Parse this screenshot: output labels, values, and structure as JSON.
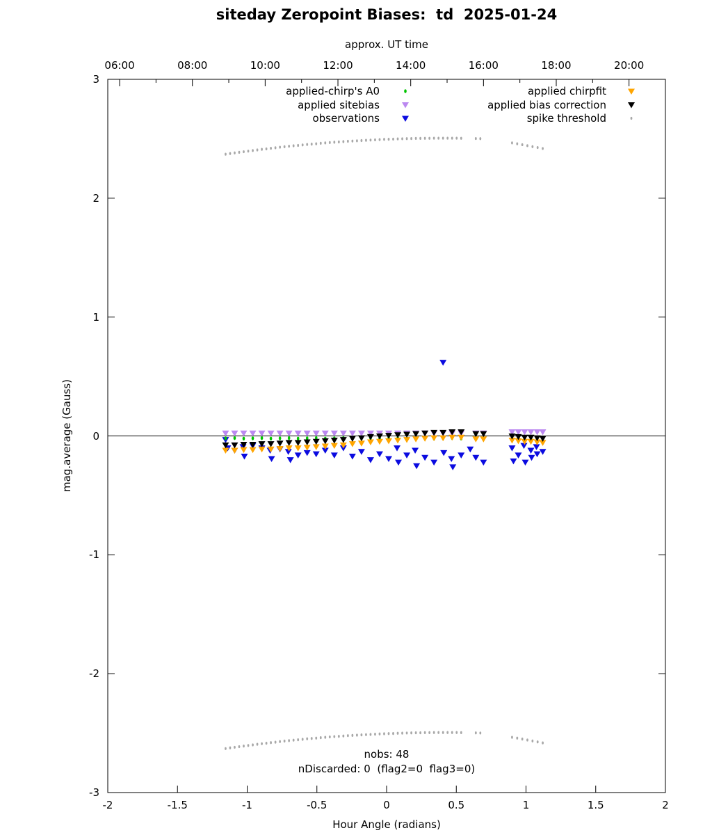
{
  "title": "siteday Zeropoint Biases:  td  2025-01-24",
  "chart_data": {
    "type": "scatter",
    "title": "siteday Zeropoint Biases:  td  2025-01-24",
    "xlabel": "Hour Angle (radians)",
    "ylabel": "mag.average (Gauss)",
    "x2label": "approx. UT time",
    "xlim": [
      -2,
      2
    ],
    "ylim": [
      -3,
      3
    ],
    "grid": false,
    "x_ticks": [
      -2,
      -1.5,
      -1,
      -0.5,
      0,
      0.5,
      1,
      1.5,
      2
    ],
    "x_tick_labels": [
      "-2",
      "-1.5",
      "-1",
      "-0.5",
      "0",
      "0.5",
      "1",
      "1.5",
      "2"
    ],
    "y_ticks": [
      3,
      2,
      1,
      0,
      -1,
      -2,
      -3
    ],
    "y_tick_labels": [
      "3",
      "2",
      "1",
      "0",
      "-1",
      "-2",
      "-3"
    ],
    "x2_ticks": [
      -1.915,
      -1.393,
      -0.871,
      -0.349,
      0.173,
      0.695,
      1.217,
      1.739
    ],
    "x2_tick_labels": [
      "06:00",
      "08:00",
      "10:00",
      "12:00",
      "14:00",
      "16:00",
      "18:00",
      "20:00"
    ],
    "x2_ticks_minor": [
      -1.654,
      -1.132,
      -0.61,
      -0.088,
      0.434,
      0.956,
      1.478
    ],
    "zero_line": 0,
    "annotations": {
      "nobs": "nobs: 48",
      "ndiscarded": "nDiscarded: 0  (flag2=0  flag3=0)"
    },
    "series": [
      {
        "name": "observations",
        "marker": "triangle-down",
        "color": "#0b0be0",
        "x": [
          -1.155,
          -1.14,
          -1.09,
          -1.03,
          -1.02,
          -0.96,
          -0.895,
          -0.835,
          -0.825,
          -0.765,
          -0.705,
          -0.69,
          -0.635,
          -0.57,
          -0.505,
          -0.44,
          -0.375,
          -0.31,
          -0.245,
          -0.18,
          -0.115,
          -0.05,
          0.015,
          0.075,
          0.085,
          0.145,
          0.205,
          0.215,
          0.275,
          0.34,
          0.405,
          0.41,
          0.465,
          0.475,
          0.535,
          0.6,
          0.64,
          0.695,
          0.9,
          0.91,
          0.945,
          0.985,
          0.995,
          1.035,
          1.04,
          1.075,
          1.08,
          1.12
        ],
        "y": [
          -0.03,
          -0.1,
          -0.12,
          -0.09,
          -0.17,
          -0.08,
          -0.1,
          -0.12,
          -0.19,
          -0.11,
          -0.13,
          -0.2,
          -0.16,
          -0.14,
          -0.15,
          -0.12,
          -0.16,
          -0.1,
          -0.17,
          -0.13,
          -0.2,
          -0.15,
          -0.19,
          -0.1,
          -0.22,
          -0.16,
          -0.12,
          -0.25,
          -0.18,
          -0.22,
          0.62,
          -0.14,
          -0.19,
          -0.26,
          -0.16,
          -0.11,
          -0.18,
          -0.22,
          -0.1,
          -0.21,
          -0.16,
          -0.08,
          -0.22,
          -0.12,
          -0.18,
          -0.09,
          -0.15,
          -0.13
        ]
      },
      {
        "name": "applied-chirp's A0",
        "marker": "dot",
        "color": "#00c400",
        "x": [
          -1.155,
          -1.09,
          -1.025,
          -0.96,
          -0.895,
          -0.83,
          -0.765,
          -0.7,
          -0.635,
          -0.57,
          -0.505,
          -0.44,
          -0.375,
          -0.31,
          -0.245,
          -0.18,
          -0.115,
          -0.05,
          0.015,
          0.08,
          0.145,
          0.21,
          0.275,
          0.34,
          0.405,
          0.47,
          0.535,
          0.64,
          0.695,
          0.9,
          0.945,
          0.99,
          1.035,
          1.08,
          1.12
        ],
        "y": [
          -0.02,
          -0.018,
          -0.022,
          -0.02,
          -0.018,
          -0.022,
          -0.02,
          -0.018,
          -0.022,
          -0.02,
          -0.018,
          -0.022,
          -0.02,
          -0.018,
          -0.022,
          -0.02,
          -0.018,
          -0.022,
          -0.02,
          -0.018,
          -0.022,
          -0.02,
          -0.018,
          -0.022,
          -0.02,
          -0.018,
          -0.022,
          -0.02,
          -0.022,
          -0.02,
          -0.018,
          -0.022,
          -0.02,
          -0.018,
          -0.022
        ]
      },
      {
        "name": "applied sitebias",
        "marker": "triangle-down",
        "color": "#bb88f0",
        "x": [
          -1.155,
          -1.09,
          -1.025,
          -0.96,
          -0.895,
          -0.83,
          -0.765,
          -0.7,
          -0.635,
          -0.57,
          -0.505,
          -0.44,
          -0.375,
          -0.31,
          -0.245,
          -0.18,
          -0.115,
          -0.05,
          0.015,
          0.08,
          0.145,
          0.21,
          0.275,
          0.34,
          0.405,
          0.47,
          0.535,
          0.64,
          0.695,
          0.9,
          0.945,
          0.99,
          1.035,
          1.08,
          1.12
        ],
        "y": [
          0.025,
          0.025,
          0.025,
          0.025,
          0.025,
          0.025,
          0.025,
          0.025,
          0.025,
          0.025,
          0.025,
          0.025,
          0.025,
          0.025,
          0.025,
          0.025,
          0.025,
          0.025,
          0.025,
          0.025,
          0.025,
          0.025,
          0.025,
          0.025,
          0.025,
          0.025,
          0.025,
          0.025,
          0.025,
          0.035,
          0.035,
          0.035,
          0.035,
          0.035,
          0.035
        ]
      },
      {
        "name": "applied chirpfit",
        "marker": "triangle-down",
        "color": "#ffa500",
        "x": [
          -1.155,
          -1.09,
          -1.025,
          -0.96,
          -0.895,
          -0.83,
          -0.765,
          -0.7,
          -0.635,
          -0.57,
          -0.505,
          -0.44,
          -0.375,
          -0.31,
          -0.245,
          -0.18,
          -0.115,
          -0.05,
          0.015,
          0.08,
          0.145,
          0.21,
          0.275,
          0.34,
          0.405,
          0.47,
          0.535,
          0.64,
          0.695,
          0.9,
          0.945,
          0.99,
          1.035,
          1.08,
          1.12
        ],
        "y": [
          -0.12,
          -0.12,
          -0.115,
          -0.115,
          -0.11,
          -0.11,
          -0.105,
          -0.1,
          -0.1,
          -0.095,
          -0.09,
          -0.085,
          -0.08,
          -0.075,
          -0.065,
          -0.06,
          -0.05,
          -0.045,
          -0.04,
          -0.035,
          -0.03,
          -0.025,
          -0.02,
          -0.015,
          -0.015,
          -0.01,
          -0.01,
          -0.025,
          -0.025,
          -0.035,
          -0.04,
          -0.045,
          -0.045,
          -0.05,
          -0.055
        ]
      },
      {
        "name": "applied bias correction",
        "marker": "triangle-down",
        "color": "#000000",
        "x": [
          -1.155,
          -1.09,
          -1.025,
          -0.96,
          -0.895,
          -0.83,
          -0.765,
          -0.7,
          -0.635,
          -0.57,
          -0.505,
          -0.44,
          -0.375,
          -0.31,
          -0.245,
          -0.18,
          -0.115,
          -0.05,
          0.015,
          0.08,
          0.145,
          0.21,
          0.275,
          0.34,
          0.405,
          0.47,
          0.535,
          0.64,
          0.695,
          0.9,
          0.945,
          0.99,
          1.035,
          1.08,
          1.12
        ],
        "y": [
          -0.075,
          -0.075,
          -0.07,
          -0.07,
          -0.065,
          -0.065,
          -0.06,
          -0.055,
          -0.055,
          -0.05,
          -0.045,
          -0.04,
          -0.035,
          -0.03,
          -0.02,
          -0.015,
          -0.005,
          0,
          0.005,
          0.01,
          0.015,
          0.02,
          0.025,
          0.03,
          0.03,
          0.035,
          0.035,
          0.02,
          0.02,
          0,
          -0.005,
          -0.01,
          -0.01,
          -0.015,
          -0.02
        ]
      },
      {
        "name": "spike threshold",
        "marker": "dot-small",
        "color": "#a8a8a8",
        "x": [
          -1.155,
          -1.1225,
          -1.09,
          -1.0575,
          -1.025,
          -0.9925,
          -0.96,
          -0.9275,
          -0.895,
          -0.8625,
          -0.83,
          -0.7975,
          -0.765,
          -0.7325,
          -0.7,
          -0.6675,
          -0.635,
          -0.6025,
          -0.57,
          -0.5375,
          -0.505,
          -0.4725,
          -0.44,
          -0.4075,
          -0.375,
          -0.3425,
          -0.31,
          -0.2775,
          -0.245,
          -0.2125,
          -0.18,
          -0.1475,
          -0.115,
          -0.0825,
          -0.05,
          -0.0175,
          0.015,
          0.0475,
          0.08,
          0.1125,
          0.145,
          0.1775,
          0.21,
          0.2425,
          0.275,
          0.3075,
          0.34,
          0.3725,
          0.405,
          0.4375,
          0.47,
          0.5025,
          0.535,
          0.64,
          0.6725,
          0.9,
          0.9367,
          0.9733,
          1.01,
          1.0467,
          1.0833,
          1.12
        ],
        "y_upper": [
          2.37,
          2.376,
          2.381,
          2.386,
          2.391,
          2.396,
          2.401,
          2.406,
          2.411,
          2.415,
          2.42,
          2.424,
          2.429,
          2.433,
          2.437,
          2.441,
          2.444,
          2.448,
          2.452,
          2.455,
          2.458,
          2.462,
          2.465,
          2.468,
          2.471,
          2.473,
          2.476,
          2.479,
          2.481,
          2.483,
          2.485,
          2.487,
          2.489,
          2.491,
          2.493,
          2.495,
          2.496,
          2.497,
          2.499,
          2.5,
          2.501,
          2.502,
          2.503,
          2.503,
          2.504,
          2.504,
          2.505,
          2.505,
          2.505,
          2.505,
          2.505,
          2.505,
          2.504,
          2.502,
          2.501,
          2.465,
          2.458,
          2.45,
          2.442,
          2.434,
          2.426,
          2.418
        ],
        "y_lower": [
          -2.63,
          -2.624,
          -2.619,
          -2.614,
          -2.609,
          -2.604,
          -2.599,
          -2.594,
          -2.589,
          -2.585,
          -2.58,
          -2.576,
          -2.571,
          -2.567,
          -2.563,
          -2.559,
          -2.556,
          -2.552,
          -2.548,
          -2.545,
          -2.542,
          -2.538,
          -2.535,
          -2.532,
          -2.529,
          -2.527,
          -2.524,
          -2.521,
          -2.519,
          -2.517,
          -2.515,
          -2.513,
          -2.511,
          -2.509,
          -2.507,
          -2.505,
          -2.504,
          -2.503,
          -2.501,
          -2.5,
          -2.499,
          -2.498,
          -2.497,
          -2.497,
          -2.496,
          -2.496,
          -2.495,
          -2.495,
          -2.495,
          -2.495,
          -2.495,
          -2.495,
          -2.496,
          -2.498,
          -2.499,
          -2.535,
          -2.542,
          -2.55,
          -2.558,
          -2.566,
          -2.574,
          -2.582
        ]
      }
    ],
    "legend": {
      "position": "top-inside",
      "entries": [
        {
          "label": "applied-chirp's A0",
          "marker": "dot",
          "color": "#00c400"
        },
        {
          "label": "applied chirpfit",
          "marker": "triangle-down",
          "color": "#ffa500"
        },
        {
          "label": "applied sitebias",
          "marker": "triangle-down",
          "color": "#bb88f0"
        },
        {
          "label": "applied bias correction",
          "marker": "triangle-down",
          "color": "#000000"
        },
        {
          "label": "observations",
          "marker": "triangle-down",
          "color": "#0b0be0"
        },
        {
          "label": "spike threshold",
          "marker": "dot-small",
          "color": "#a8a8a8"
        }
      ]
    }
  }
}
